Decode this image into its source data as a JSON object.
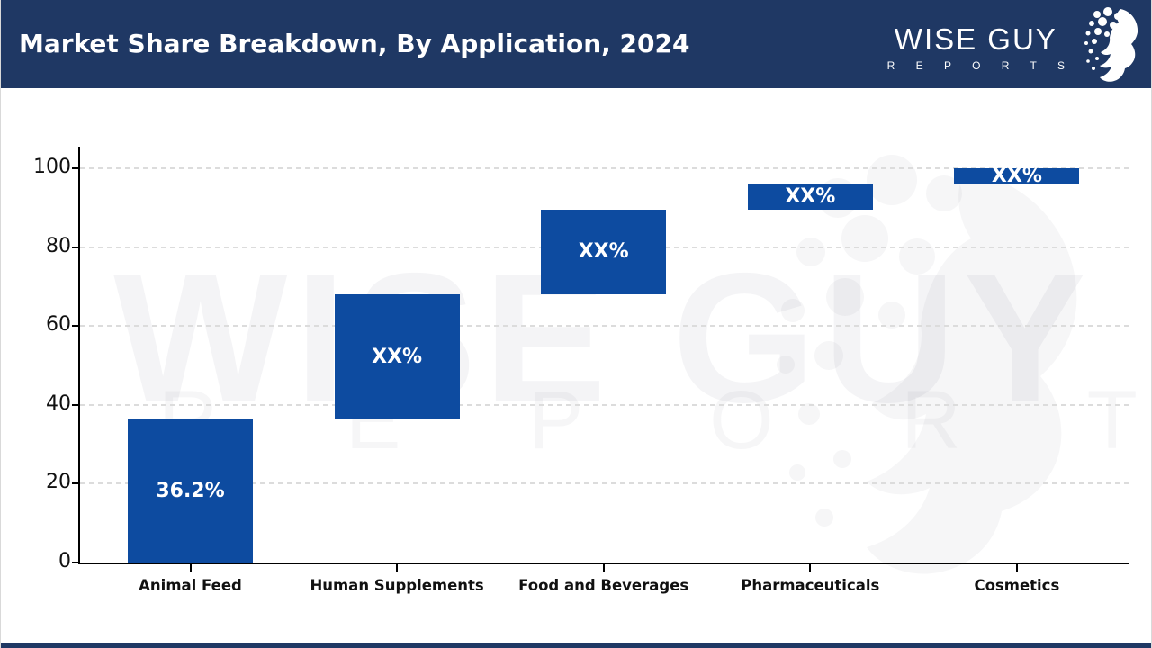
{
  "header": {
    "title": "Market Share Breakdown, By Application, 2024",
    "logo": {
      "line1": "WISE GUY",
      "line2": "R E P O R T S"
    }
  },
  "watermark": {
    "line1": "WISE GUY",
    "line2": "R E P O R T S"
  },
  "chart_data": {
    "type": "bar",
    "subtype": "waterfall",
    "title": "Market Share Breakdown, By Application, 2024",
    "xlabel": "",
    "ylabel": "",
    "ylim": [
      0,
      104
    ],
    "yticks": [
      0,
      20,
      40,
      60,
      80,
      100
    ],
    "grid": "horizontal-dashed",
    "legend": "none",
    "categories": [
      "Animal Feed",
      "Human Supplements",
      "Food and Beverages",
      "Pharmaceuticals",
      "Cosmetics"
    ],
    "segments": [
      {
        "category": "Animal Feed",
        "start": 0,
        "end": 36.2,
        "label": "36.2%"
      },
      {
        "category": "Human Supplements",
        "start": 36.2,
        "end": 68.0,
        "label": "XX%"
      },
      {
        "category": "Food and Beverages",
        "start": 68.0,
        "end": 89.5,
        "label": "XX%"
      },
      {
        "category": "Pharmaceuticals",
        "start": 89.5,
        "end": 96.0,
        "label": "XX%"
      },
      {
        "category": "Cosmetics",
        "start": 96.0,
        "end": 100.0,
        "label": "XX%"
      }
    ]
  },
  "colors": {
    "header_bg": "#1f3864",
    "footer_bg": "#1f3864",
    "bar": "#0d4ba0",
    "bar_label": "#ffffff",
    "grid": "#dcdcdc",
    "axis": "#000000"
  }
}
